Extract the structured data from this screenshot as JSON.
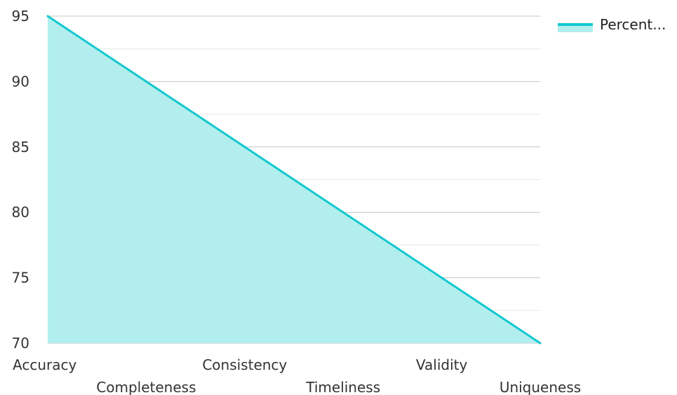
{
  "chart_data": {
    "type": "area",
    "categories": [
      "Accuracy",
      "Completeness",
      "Consistency",
      "Timeliness",
      "Validity",
      "Uniqueness"
    ],
    "series": [
      {
        "name": "Percent...",
        "values": [
          95,
          90,
          85,
          80,
          75,
          70
        ]
      }
    ],
    "ylim": [
      70,
      95
    ],
    "yticks": [
      70,
      75,
      80,
      85,
      90,
      95
    ],
    "title": "",
    "xlabel": "",
    "ylabel": "",
    "grid": true,
    "legend_position": "top-right",
    "colors": {
      "line": "#12c8cf",
      "fill": "#b2eeee"
    }
  }
}
